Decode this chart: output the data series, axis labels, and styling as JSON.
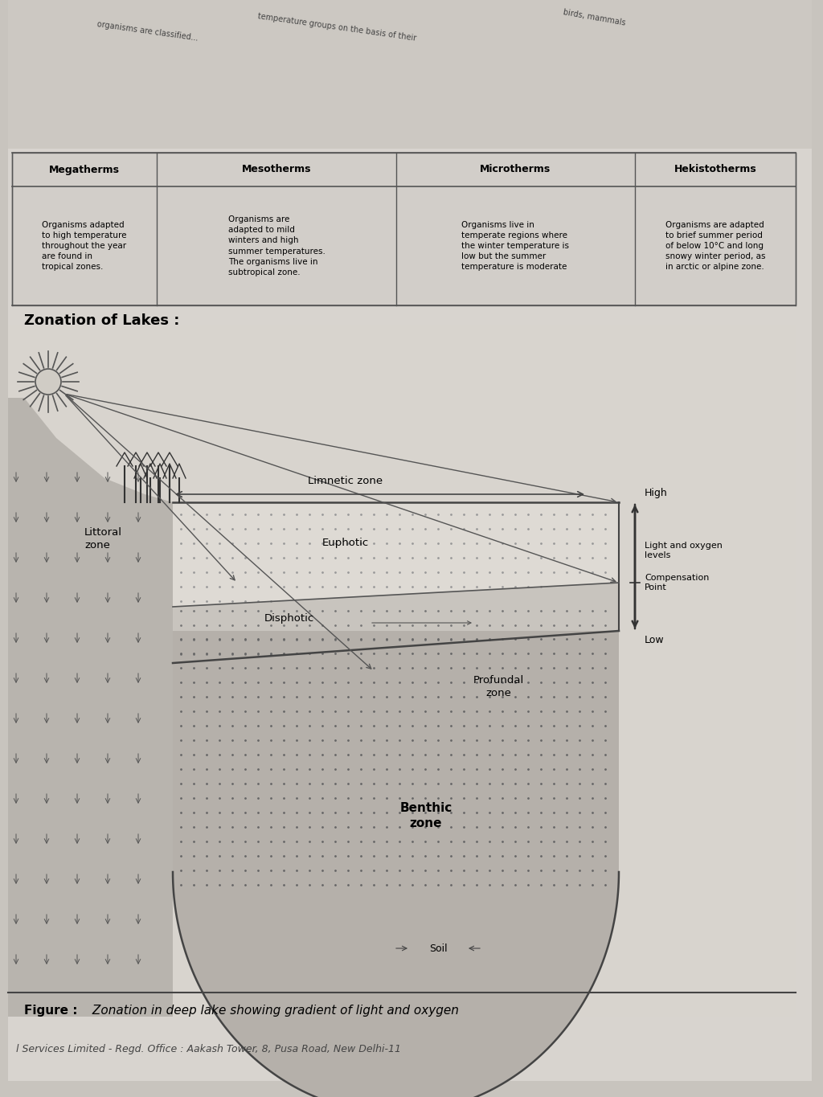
{
  "bg_color": "#c8c4be",
  "page_bg": "#d5d1cc",
  "table_bg": "#ccc8c3",
  "diagram_bg": "#dedad5",
  "title": "Zonation of Lakes :",
  "figure_caption_bold": "Figure :",
  "figure_caption_rest": " Zonation in deep lake showing gradient of light and oxygen",
  "footer": "l Services Limited - Regd. Office : Aakash Tower, 8, Pusa Road, New Delhi-11",
  "top_text1": "organisms are classified...",
  "top_text2": "temperature groups on the basis of their...",
  "top_text3": "birds, mammals",
  "headers": [
    "Megatherms",
    "Mesotherms",
    "Microtherms",
    "Hekistotherms"
  ],
  "body_texts": [
    "Organisms adapted\nto high temperature\nthroughout the year\nare found in\ntropical zones.",
    "Organisms are\nadapted to mild\nwinters and high\nsummer temperatures.\nThe organisms live in\nsubtropical zone.",
    "Organisms live in\ntemperate regions where\nthe winter temperature is\nlow but the summer\ntemperature is moderate",
    "Organisms are adapted\nto brief summer period\nof below 10°C and long\nsnowy winter period, as\nin arctic or alpine zone."
  ],
  "zones": {
    "littoral": "Littoral\nzone",
    "limnetic": "Limnetic zone",
    "euphotic": "Euphotic",
    "disphotic": "Disphotic",
    "profundal": "Profundal\nzone",
    "benthic": "Benthic\nzone",
    "soil": "Soil"
  },
  "axis_labels": {
    "high": "High",
    "low": "Low",
    "compensation": "Compensation\nPoint",
    "light_oxygen": "Light and oxygen\nlevels"
  }
}
